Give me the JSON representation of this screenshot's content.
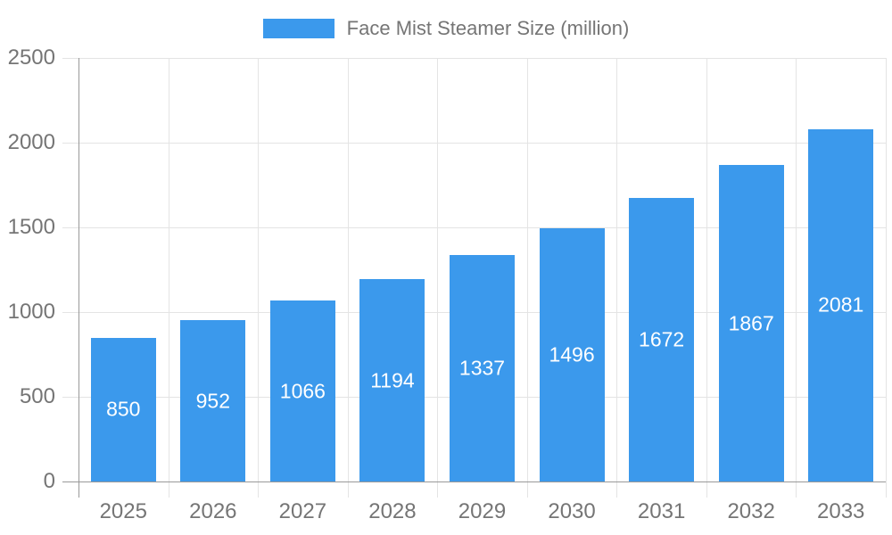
{
  "legend": {
    "label": "Face Mist Steamer Size (million)"
  },
  "colors": {
    "bar": "#3b99ec",
    "axis_line": "#999999",
    "grid_line": "#e4e4e4",
    "tick_text": "#757575",
    "bar_label_text": "#ffffff",
    "legend_text": "#757575",
    "background": "#ffffff"
  },
  "chart_data": {
    "type": "bar",
    "title": "Face Mist Steamer Size (million)",
    "categories": [
      "2025",
      "2026",
      "2027",
      "2028",
      "2029",
      "2030",
      "2031",
      "2032",
      "2033"
    ],
    "values": [
      850,
      952,
      1066,
      1194,
      1337,
      1496,
      1672,
      1867,
      2081
    ],
    "xlabel": "",
    "ylabel": "",
    "ylim": [
      0,
      2500
    ],
    "yticks": [
      0,
      500,
      1000,
      1500,
      2000,
      2500
    ],
    "grid": true,
    "legend_position": "top-center",
    "bar_labels": "inside-center",
    "bar_label_color": "#ffffff"
  }
}
